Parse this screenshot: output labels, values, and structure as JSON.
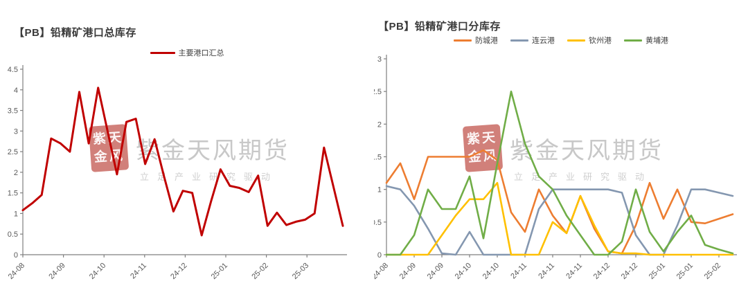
{
  "chart_data": [
    {
      "type": "line",
      "title": "【PB】铅精矿港口总库存",
      "xlabel": "",
      "ylabel": "",
      "ylim": [
        0,
        4.5
      ],
      "y_tick_step": 0.5,
      "grid": false,
      "legend_position": "top-center",
      "x_tick_labels": [
        "24-08",
        "24-09",
        "24-10",
        "24-11",
        "24-12",
        "25-01",
        "25-02",
        "25-03"
      ],
      "series": [
        {
          "name": "主要港口汇总",
          "color": "#C00000",
          "values": [
            1.08,
            1.25,
            1.45,
            2.82,
            2.7,
            2.5,
            3.95,
            2.7,
            4.05,
            3.0,
            1.95,
            3.22,
            3.3,
            2.2,
            2.8,
            1.9,
            1.05,
            1.55,
            1.5,
            0.47,
            1.3,
            2.07,
            1.67,
            1.62,
            1.52,
            1.92,
            0.7,
            1.02,
            0.72,
            0.8,
            0.85,
            1.0,
            2.6,
            1.65,
            0.7
          ]
        }
      ]
    },
    {
      "type": "line",
      "title": "【PB】铅精矿港口分库存",
      "xlabel": "",
      "ylabel": "",
      "ylim": [
        0,
        3
      ],
      "y_tick_step": 0.5,
      "grid": false,
      "legend_position": "top-center",
      "x_tick_labels": [
        "24-08",
        "24-09",
        "24-09",
        "24-10",
        "24-10",
        "24-11",
        "24-11",
        "24-11",
        "24-12",
        "24-12",
        "25-01",
        "25-01",
        "25-02"
      ],
      "series": [
        {
          "name": "防城港",
          "color": "#ED7D31",
          "values": [
            1.1,
            1.4,
            0.85,
            1.5,
            1.5,
            1.5,
            1.5,
            1.6,
            1.45,
            0.65,
            0.35,
            1.0,
            0.6,
            0.33,
            0.9,
            0.4,
            0.05,
            0.02,
            0.45,
            1.1,
            0.55,
            1.0,
            0.5,
            0.48,
            0.55,
            0.62
          ]
        },
        {
          "name": "连云港",
          "color": "#8497B0",
          "values": [
            1.05,
            1.0,
            0.75,
            0.4,
            0.02,
            0.0,
            0.35,
            0.0,
            0.0,
            0.0,
            0.0,
            0.7,
            1.0,
            1.0,
            1.0,
            1.0,
            1.0,
            0.95,
            0.3,
            0.0,
            0.0,
            0.45,
            1.0,
            1.0,
            0.95,
            0.9
          ]
        },
        {
          "name": "钦州港",
          "color": "#FFC000",
          "values": [
            0.0,
            0.0,
            0.0,
            0.0,
            0.3,
            0.6,
            0.85,
            0.85,
            1.1,
            0.0,
            0.0,
            0.0,
            0.5,
            0.33,
            0.9,
            0.45,
            0.05,
            0.02,
            0.02,
            0.0,
            0.0,
            0.0,
            0.0,
            0.0,
            0.0,
            0.0
          ]
        },
        {
          "name": "黄埔港",
          "color": "#70AD47",
          "values": [
            0.0,
            0.0,
            0.3,
            1.0,
            0.7,
            0.7,
            1.2,
            0.25,
            1.4,
            2.5,
            1.7,
            1.2,
            1.0,
            0.6,
            0.3,
            0.0,
            0.0,
            0.2,
            1.0,
            0.35,
            0.05,
            0.35,
            0.6,
            0.15,
            0.08,
            0.02
          ]
        }
      ]
    }
  ],
  "watermark": {
    "seal_rows": [
      "紫天",
      "金风"
    ],
    "brand": "紫金天风期货",
    "slogan": "立足产业研究驱动",
    "seal_color": "#B22C22",
    "text_color": "#C8C8C8"
  },
  "style": {
    "axis_color": "#7F7F7F",
    "tick_label_color": "#595959",
    "title_color": "#3A3A3A",
    "background": "#FFFFFF"
  }
}
